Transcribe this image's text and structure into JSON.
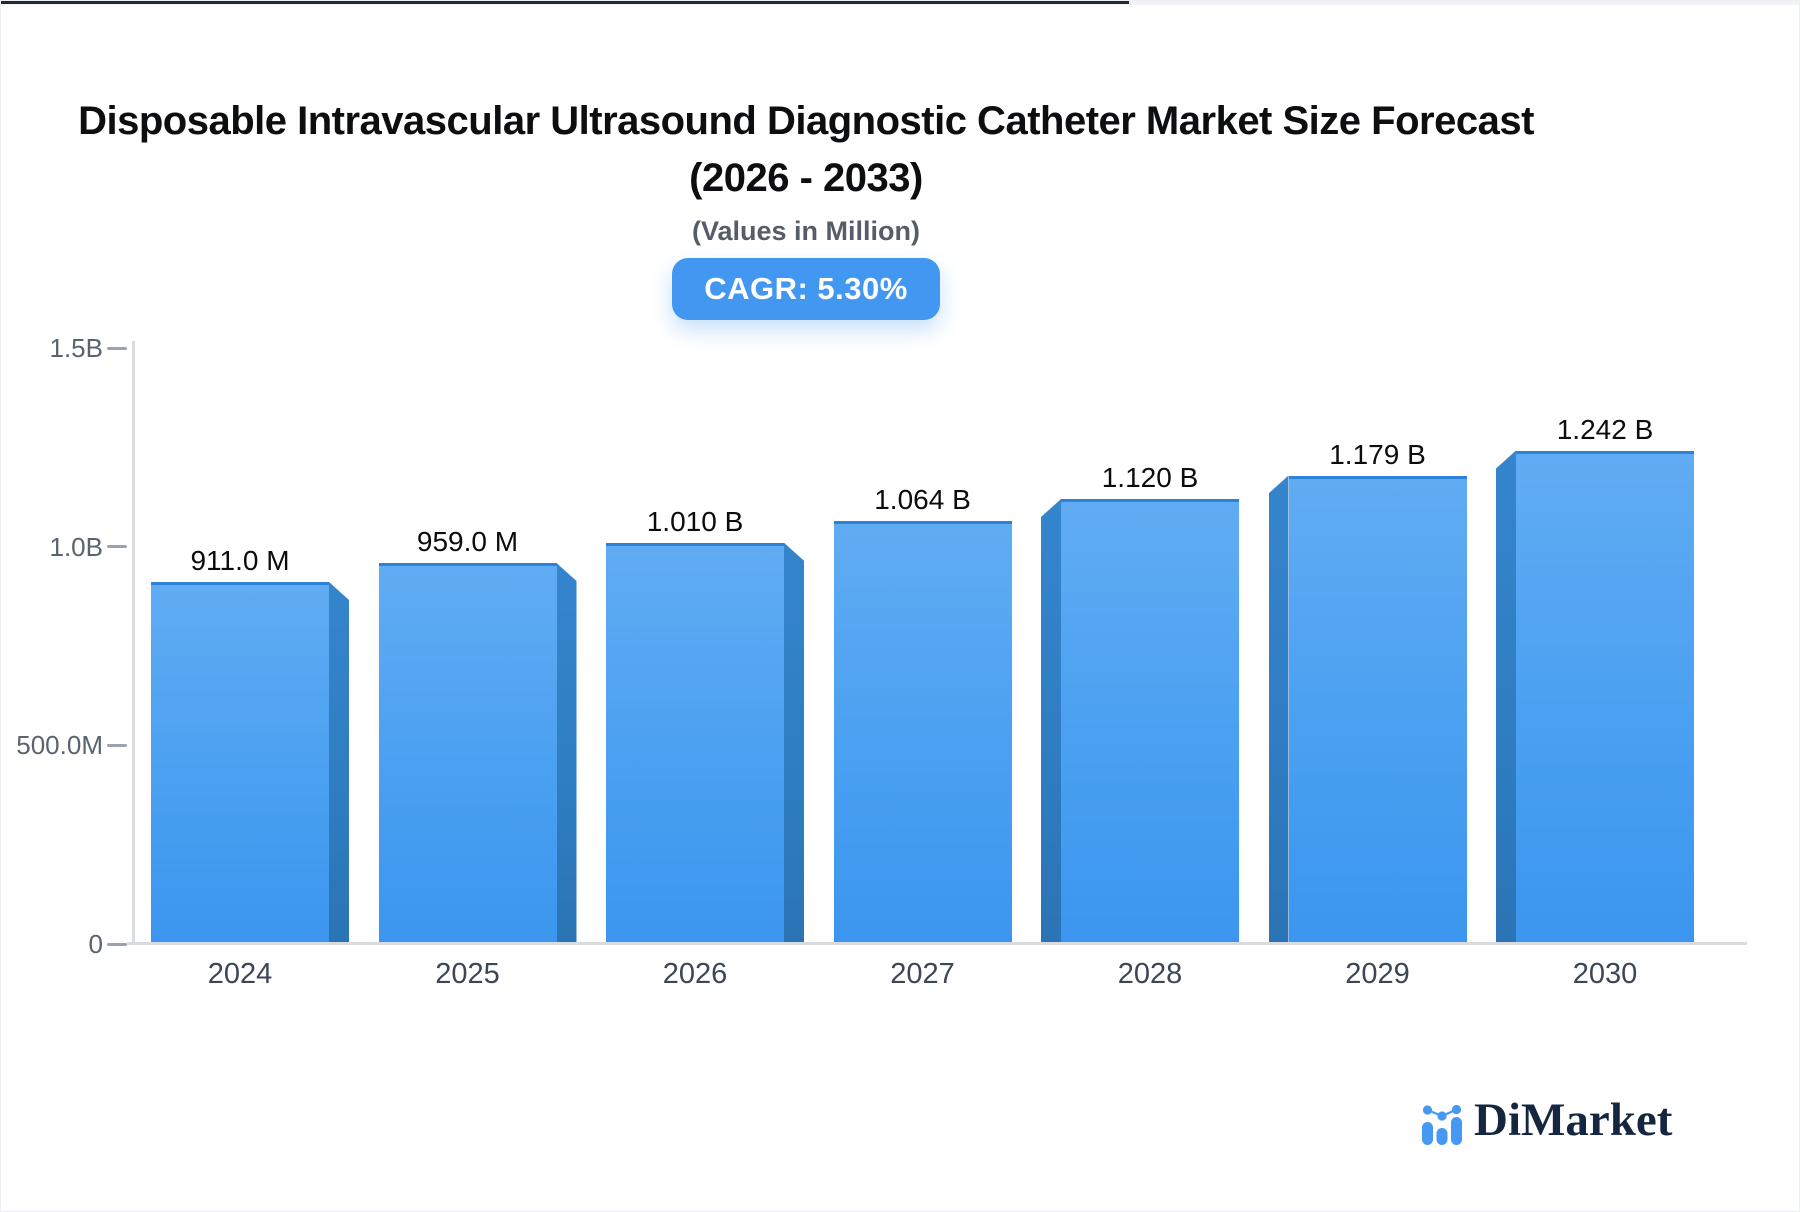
{
  "header": {
    "title_line1": "Disposable Intravascular Ultrasound Diagnostic Catheter Market Size Forecast",
    "title_line2": "(2026 - 2033)",
    "subtitle": "(Values in Million)",
    "cagr_badge": "CAGR: 5.30%"
  },
  "chart_data": {
    "type": "bar",
    "title": "Disposable Intravascular Ultrasound Diagnostic Catheter Market Size Forecast (2026 - 2033)",
    "subtitle": "(Values in Million)",
    "unit": "Million",
    "cagr_label": "CAGR: 5.30%",
    "cagr_percent": 5.3,
    "categories": [
      "2024",
      "2025",
      "2026",
      "2027",
      "2028",
      "2029",
      "2030"
    ],
    "values_million": [
      911,
      959,
      1010,
      1064,
      1120,
      1179,
      1242
    ],
    "bar_labels": [
      "911.0 M",
      "959.0 M",
      "1.010 B",
      "1.064 B",
      "1.120 B",
      "1.179 B",
      "1.242 B"
    ],
    "y_axis": {
      "range_million": [
        0,
        1500
      ],
      "ticks": [
        {
          "label": "1.5B",
          "value_million": 1500
        },
        {
          "label": "1.0B",
          "value_million": 1000
        },
        {
          "label": "500.0M",
          "value_million": 500
        },
        {
          "label": "0",
          "value_million": 0
        }
      ]
    },
    "grid": false,
    "legend": null,
    "style_3d": true,
    "colors": {
      "bar_face_top": "#60acf3",
      "bar_face_bottom": "#3c96ef",
      "bar_top_stroke": "#2e81d8",
      "bar_side": "#2e7dc2",
      "axis_line": "#d8dbdf",
      "badge_bg": "#4297f0",
      "badge_text": "#ffffff"
    }
  },
  "logo": {
    "text": "DiMarket",
    "icon": "mini-bar-chart-icon",
    "icon_color": "#4699f3",
    "text_color": "#152740"
  }
}
